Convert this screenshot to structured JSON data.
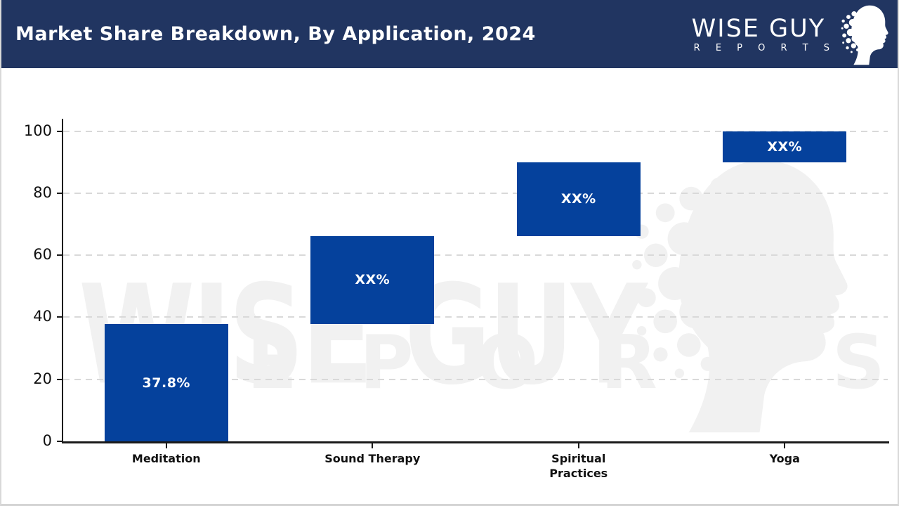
{
  "header": {
    "title": "Market Share Breakdown, By Application, 2024",
    "logo": {
      "line1": "WISE GUY",
      "line2": "R E P O R T S"
    }
  },
  "watermark": {
    "line1": "WISE GUY",
    "line2": "R E P O R T S"
  },
  "chart_data": {
    "type": "bar",
    "subtype": "stacked-waterfall",
    "title": "Market Share Breakdown, By Application, 2024",
    "categories": [
      "Meditation",
      "Sound Therapy",
      "Spiritual Practices",
      "Yoga"
    ],
    "category_label_lines": [
      [
        "Meditation"
      ],
      [
        "Sound Therapy"
      ],
      [
        "Spiritual",
        "Practices"
      ],
      [
        "Yoga"
      ]
    ],
    "bars": [
      {
        "category": "Meditation",
        "start": 0,
        "end": 37.8,
        "value": 37.8,
        "label": "37.8%"
      },
      {
        "category": "Sound Therapy",
        "start": 37.8,
        "end": 66.2,
        "value": 28.4,
        "label": "XX%"
      },
      {
        "category": "Spiritual Practices",
        "start": 66.2,
        "end": 90.0,
        "value": 23.8,
        "label": "XX%"
      },
      {
        "category": "Yoga",
        "start": 90.0,
        "end": 100.0,
        "value": 10.0,
        "label": "XX%"
      }
    ],
    "xlabel": "",
    "ylabel": "",
    "ylim": [
      0,
      100
    ],
    "yticks": [
      0,
      20,
      40,
      60,
      80,
      100
    ],
    "grid": "horizontal-dashed",
    "legend": "none"
  },
  "colors": {
    "header_bg": "#213561",
    "bar": "#05419c",
    "watermark": "#f1f1f1",
    "gridline": "#d9d9d9",
    "axis": "#1a1a1a"
  }
}
